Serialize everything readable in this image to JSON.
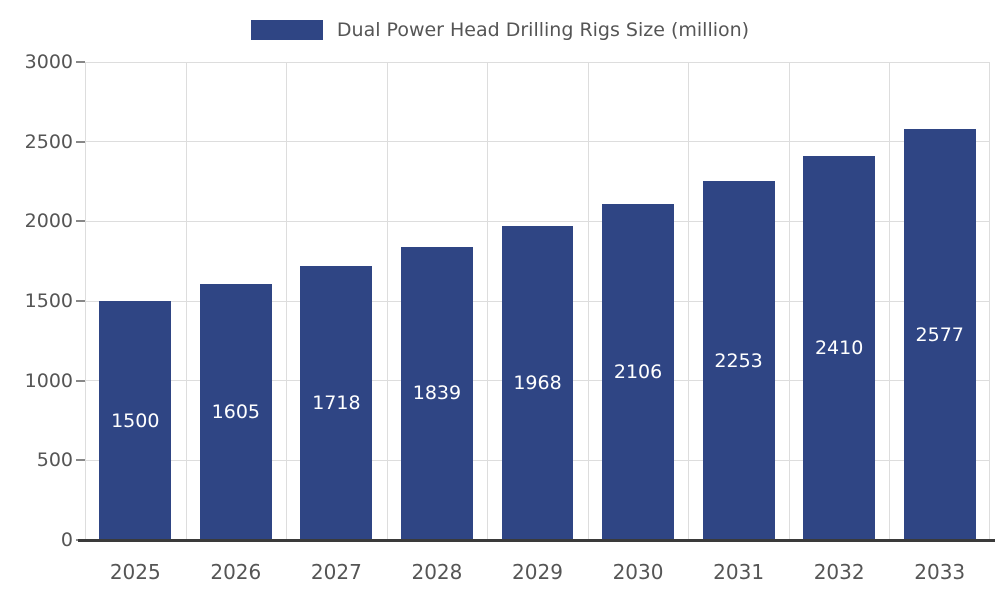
{
  "chart_data": {
    "type": "bar",
    "title": "Dual Power Head Drilling Rigs Size (million)",
    "categories": [
      "2025",
      "2026",
      "2027",
      "2028",
      "2029",
      "2030",
      "2031",
      "2032",
      "2033"
    ],
    "values": [
      1500,
      1605,
      1718,
      1839,
      1968,
      2106,
      2253,
      2410,
      2577
    ],
    "xlabel": "",
    "ylabel": "",
    "ylim": [
      0,
      3000
    ],
    "yticks": [
      0,
      500,
      1000,
      1500,
      2000,
      2500,
      3000
    ],
    "grid": true,
    "legend_position": "top-center",
    "bar_color": "#2f4584",
    "value_label_color": "#ffffff",
    "axis_text_color": "#555555",
    "gridline_color": "#dddddd"
  }
}
